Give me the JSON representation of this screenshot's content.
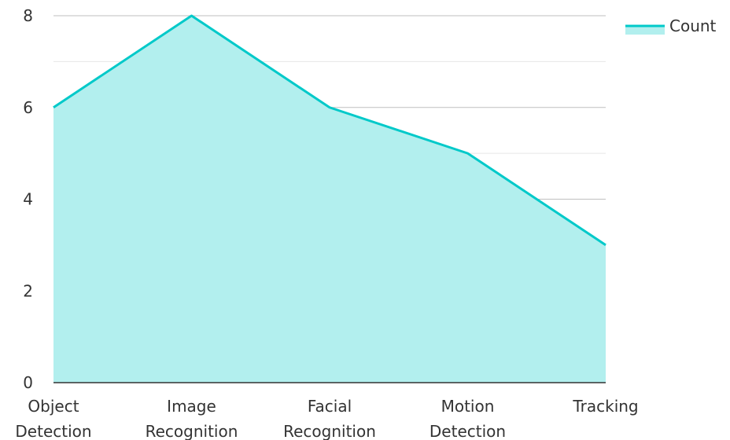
{
  "chart_data": {
    "type": "area",
    "categories": [
      [
        "Object",
        "Detection"
      ],
      [
        "Image",
        "Recognition"
      ],
      [
        "Facial",
        "Recognition"
      ],
      [
        "Motion",
        "Detection"
      ],
      [
        "Tracking"
      ]
    ],
    "series": [
      {
        "name": "Count",
        "values": [
          6,
          8,
          6,
          5,
          3
        ]
      }
    ],
    "ylim": [
      0,
      8
    ],
    "yticks": [
      "0",
      "2",
      "4",
      "6",
      "8"
    ],
    "grid": true,
    "legend_position": "top-right",
    "colors": {
      "line": "#00c9c9",
      "fill": "#b2efee",
      "grid_major": "#bfbfbf",
      "grid_minor": "#e6e6e6",
      "axis": "#333333"
    }
  }
}
